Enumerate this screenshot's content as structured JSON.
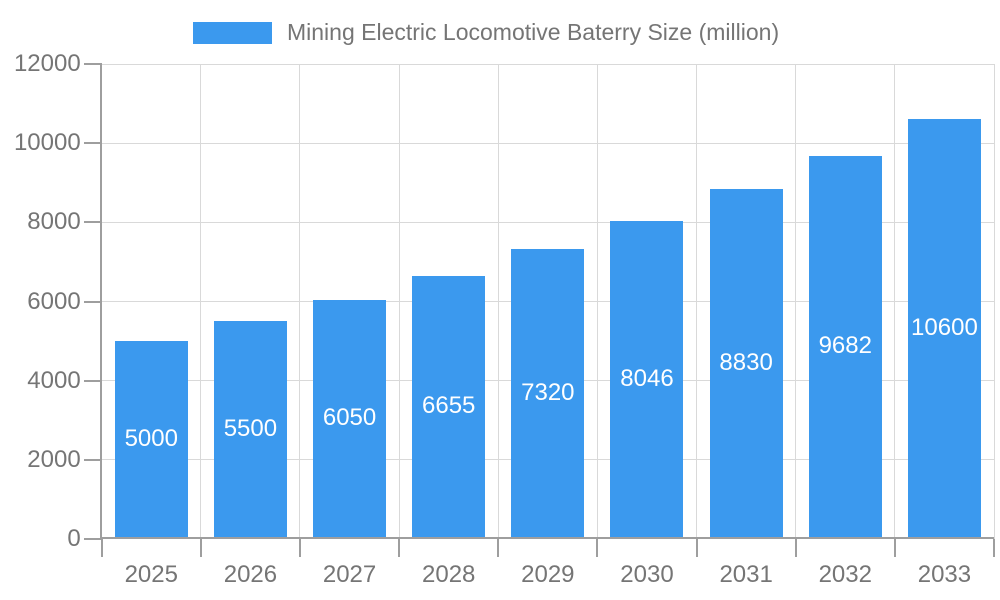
{
  "chart_data": {
    "type": "bar",
    "title": "Mining Electric Locomotive Baterry Size (million)",
    "categories": [
      "2025",
      "2026",
      "2027",
      "2028",
      "2029",
      "2030",
      "2031",
      "2032",
      "2033"
    ],
    "values": [
      5000,
      5500,
      6050,
      6655,
      7320,
      8046,
      8830,
      9682,
      10600
    ],
    "y_ticks": [
      0,
      2000,
      4000,
      6000,
      8000,
      10000,
      12000
    ],
    "ylim": [
      0,
      12000
    ],
    "xlabel": "",
    "ylabel": "",
    "grid": true,
    "legend_position": "top",
    "data_labels": "inside-center-white",
    "colors": {
      "bar": "#3B99EE",
      "axis_text": "#757575",
      "data_label_text": "#FFFFFF",
      "grid_line": "#D9D9D9",
      "axis_line": "#9E9E9E",
      "background": "#FFFFFF"
    }
  },
  "legend": {
    "label": "Mining Electric Locomotive Baterry Size (million)"
  }
}
